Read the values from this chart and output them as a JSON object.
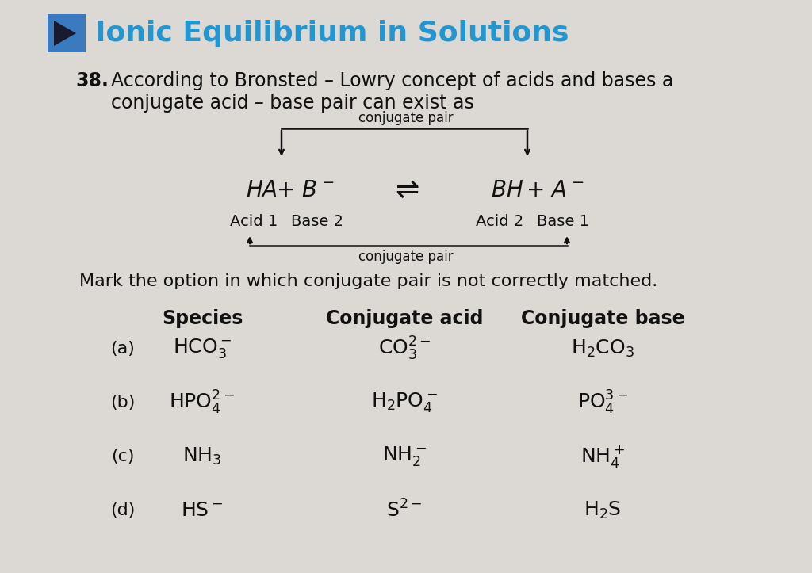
{
  "title": "Ionic Equilibrium in Solutions",
  "title_color": "#2196d0",
  "bg_color": "#c8c0b8",
  "content_bg": "#e8e4e0",
  "question_num": "38.",
  "question_line1": "According to Bronsted – Lowry concept of acids and bases a",
  "question_line2": "conjugate acid – base pair can exist as",
  "mark_text": "Mark the option in which conjugate pair is not correctly matched.",
  "col_headers": [
    "Species",
    "Conjugate acid",
    "Conjugate base"
  ],
  "icon_color": "#3a7bbf",
  "icon_arrow_color": "#1a1a2e",
  "conjugate_pair_top": "conjugate pair",
  "conjugate_pair_bottom": "conjugate pair",
  "label_acid1": "Acid 1",
  "label_base2": "Base 2",
  "label_acid2": "Acid 2",
  "label_base1": "Base 1"
}
